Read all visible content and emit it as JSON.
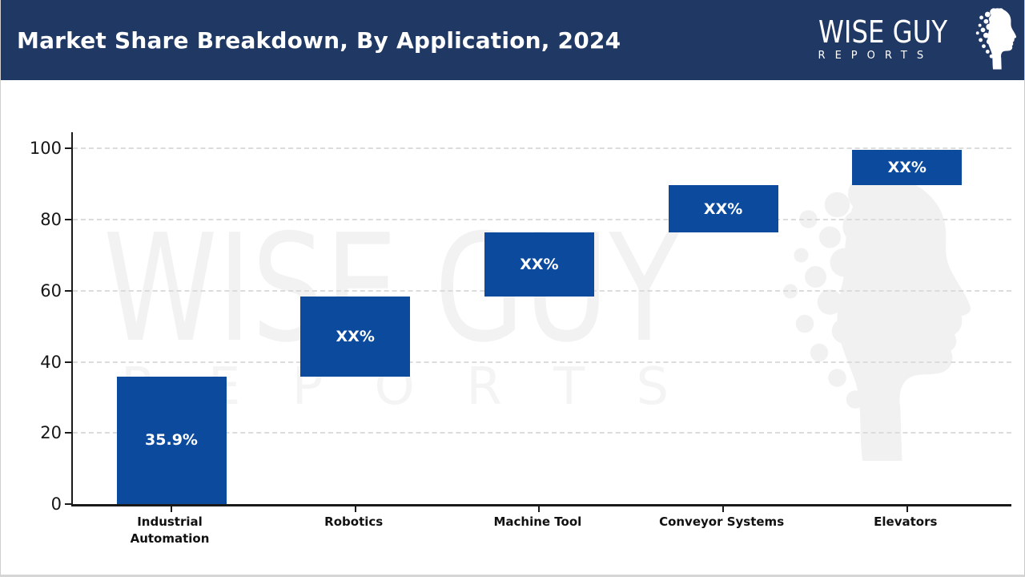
{
  "header": {
    "title": "Market Share Breakdown, By Application, 2024",
    "logo": {
      "line1": "WISE GUY",
      "line2": "REPORTS"
    }
  },
  "watermark": {
    "line1": "WISE GUY",
    "line2": "R E P O R T S"
  },
  "colors": {
    "header_bg": "#203864",
    "bar": "#0c4a9e",
    "axis": "#1a1a1a",
    "gridline": "#dcdcdc",
    "bar_label_text": "#ffffff",
    "watermark_gray": "#f2f2f2"
  },
  "chart_data": {
    "type": "bar",
    "subtype": "floating-waterfall",
    "title": "Market Share Breakdown, By Application, 2024",
    "categories": [
      "Industrial Automation",
      "Robotics",
      "Machine Tool",
      "Conveyor Systems",
      "Elevators"
    ],
    "tick_labels": [
      "Industrial\nAutomation",
      "Robotics",
      "Machine Tool",
      "Conveyor Systems",
      "Elevators"
    ],
    "series": [
      {
        "name": "Market share (%)",
        "segments": [
          {
            "category": "Industrial Automation",
            "start": 0,
            "end": 35.9,
            "label": "35.9%"
          },
          {
            "category": "Robotics",
            "start": 35.9,
            "end": 58.3,
            "label": "XX%"
          },
          {
            "category": "Machine Tool",
            "start": 58.3,
            "end": 76.4,
            "label": "XX%"
          },
          {
            "category": "Conveyor Systems",
            "start": 76.4,
            "end": 89.7,
            "label": "XX%"
          },
          {
            "category": "Elevators",
            "start": 89.7,
            "end": 99.7,
            "label": "XX%"
          }
        ]
      }
    ],
    "yticks": [
      0,
      20,
      40,
      60,
      80,
      100
    ],
    "ylim": [
      0,
      104.6
    ],
    "grid": "horizontal-dashed",
    "legend": "none"
  }
}
